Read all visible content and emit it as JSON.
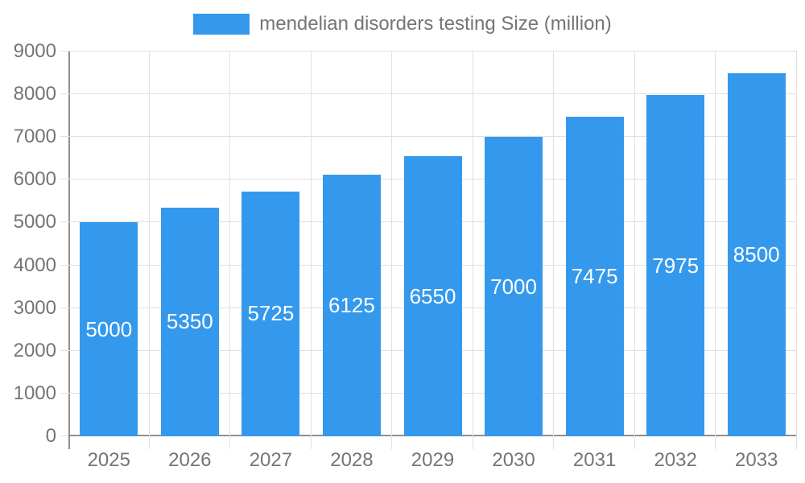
{
  "chart_data": {
    "type": "bar",
    "title": "",
    "legend": "mendelian disorders testing Size (million)",
    "legend_position": "top",
    "categories": [
      "2025",
      "2026",
      "2027",
      "2028",
      "2029",
      "2030",
      "2031",
      "2032",
      "2033"
    ],
    "values": [
      5000,
      5350,
      5725,
      6125,
      6550,
      7000,
      7475,
      7975,
      8500
    ],
    "xlabel": "",
    "ylabel": "",
    "ylim": [
      0,
      9000
    ],
    "ytick_step": 1000,
    "grid": true,
    "value_labels": "inside-center",
    "colors": {
      "bar": "#3499EC",
      "grid": "#E0E0E0",
      "axis": "#8F8F8F",
      "tick_label": "#757575",
      "bar_label": "#FFFFFF",
      "background": "#FFFFFF"
    }
  }
}
